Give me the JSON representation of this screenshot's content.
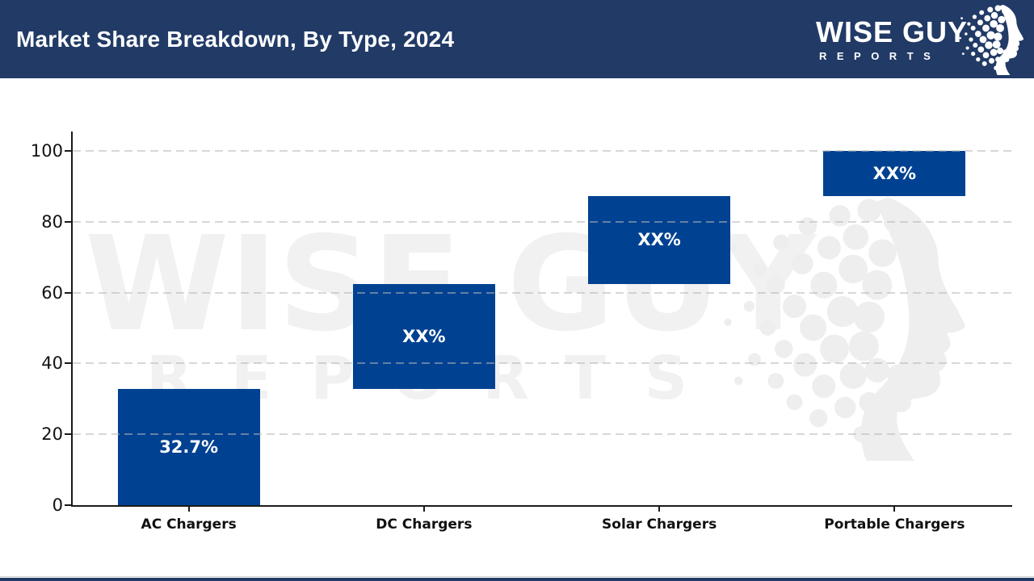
{
  "header": {
    "title": "Market Share Breakdown, By Type, 2024",
    "bg_color": "#213a66",
    "logo": {
      "line1": "WISE GUY",
      "line2": "REPORTS"
    }
  },
  "watermark": {
    "line1": "WISE GUY",
    "line2": "REPORTS",
    "color": "#f1f1f1"
  },
  "chart_data": {
    "type": "bar",
    "subtype": "waterfall-stacked-breakdown",
    "title": "Market Share Breakdown, By Type, 2024",
    "categories": [
      "AC Chargers",
      "DC Chargers",
      "Solar Chargers",
      "Portable Chargers"
    ],
    "segments": [
      {
        "category": "AC Chargers",
        "start": 0,
        "end": 32.7,
        "label": "32.7%"
      },
      {
        "category": "DC Chargers",
        "start": 32.7,
        "end": 62.5,
        "label": "XX%"
      },
      {
        "category": "Solar Chargers",
        "start": 62.5,
        "end": 87.2,
        "label": "XX%"
      },
      {
        "category": "Portable Chargers",
        "start": 87.2,
        "end": 100,
        "label": "XX%"
      }
    ],
    "bar_color": "#004191",
    "xlabel": "",
    "ylabel": "",
    "ylim": [
      0,
      105.5
    ],
    "yticks": [
      0,
      20,
      40,
      60,
      80,
      100
    ],
    "grid": "horizontal-dashed",
    "legend": "none"
  }
}
